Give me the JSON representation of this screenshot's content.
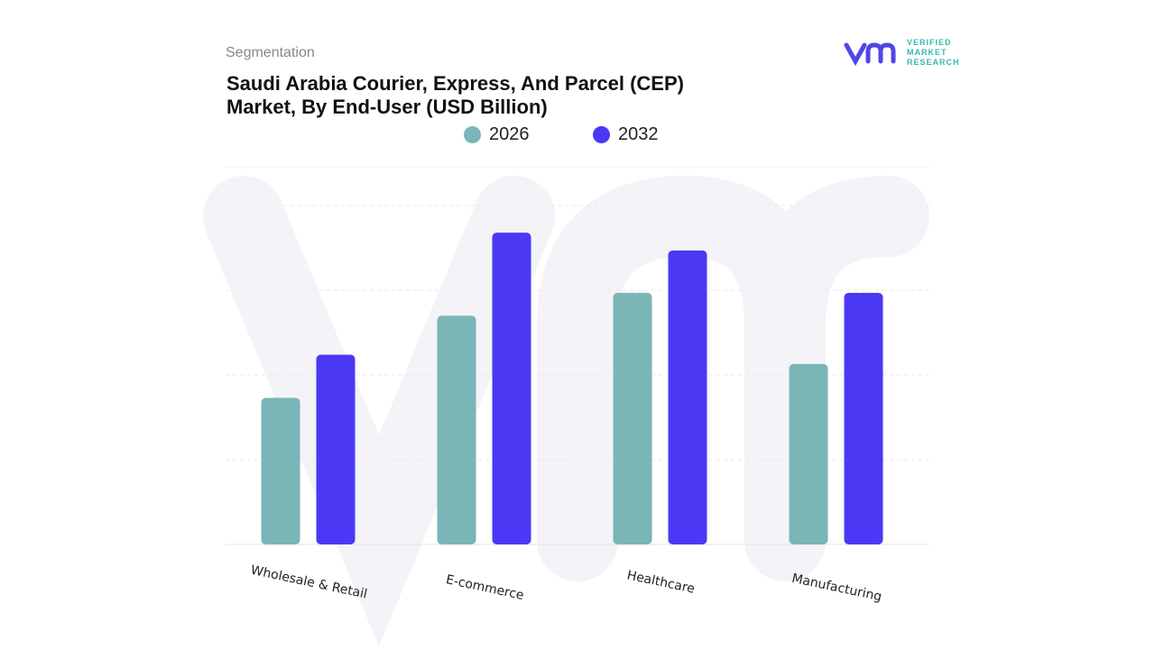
{
  "header": {
    "segment_label": "Segmentation",
    "title_line1": "Saudi Arabia Courier, Express, And Parcel (CEP)",
    "title_line2": "Market, By End-User (USD Billion)"
  },
  "logo": {
    "mark": "vm",
    "line1": "VERIFIED",
    "line2": "MARKET",
    "line3": "RESEARCH",
    "color": "#5046e5",
    "text_color": "#3bb8b0"
  },
  "chart_data": {
    "type": "bar",
    "title": "Saudi Arabia Courier, Express, And Parcel (CEP) Market, By End-User (USD Billion)",
    "categories": [
      "Wholesale & Retail",
      "E-commerce",
      "Healthcare",
      "Manufacturing"
    ],
    "series": [
      {
        "name": "2026",
        "color": "#7ab5b8",
        "values": [
          1.73,
          2.7,
          2.97,
          2.13
        ]
      },
      {
        "name": "2032",
        "color": "#4b38f5",
        "values": [
          2.24,
          3.68,
          3.47,
          2.97
        ]
      }
    ],
    "xlabel": "",
    "ylabel": "",
    "ylim": [
      0,
      4
    ],
    "y_ticks_shown": false,
    "grid": true,
    "legend": "top-center"
  }
}
